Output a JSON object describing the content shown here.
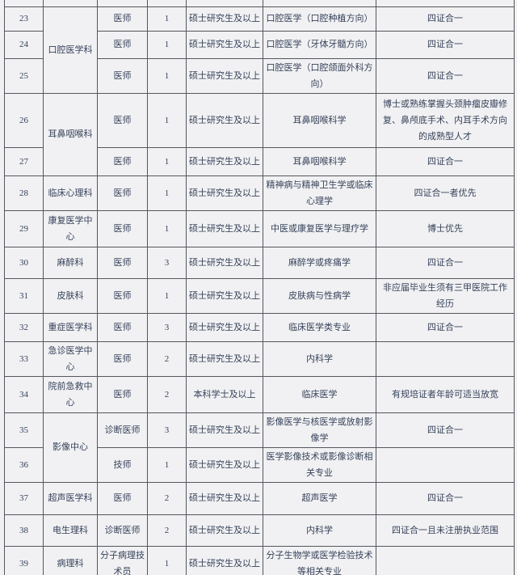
{
  "colors": {
    "background": "#f1f1f3",
    "text": "#36425a",
    "border": "#54575c"
  },
  "table": {
    "rows": [
      {
        "seq": "23",
        "department": "口腔医学科",
        "department_rowspan": 3,
        "position": "医师",
        "count": "1",
        "education": "硕士研究生及以上",
        "major": "口腔医学（口腔种植方向）",
        "remark": "四证合一"
      },
      {
        "seq": "24",
        "position": "医师",
        "count": "1",
        "education": "硕士研究生及以上",
        "major": "口腔医学（牙体牙髓方向）",
        "remark": "四证合一"
      },
      {
        "seq": "25",
        "position": "医师",
        "count": "1",
        "education": "硕士研究生及以上",
        "major": "口腔医学（口腔颌面外科方向）",
        "remark": "四证合一"
      },
      {
        "seq": "26",
        "department": "耳鼻咽喉科",
        "department_rowspan": 2,
        "position": "医师",
        "count": "1",
        "education": "硕士研究生及以上",
        "major": "耳鼻咽喉科学",
        "remark": "博士或熟练掌握头颈肿瘤皮瓣修复、鼻颅底手术、内耳手术方向的成熟型人才"
      },
      {
        "seq": "27",
        "position": "医师",
        "count": "1",
        "education": "硕士研究生及以上",
        "major": "耳鼻咽喉科学",
        "remark": "四证合一"
      },
      {
        "seq": "28",
        "department": "临床心理科",
        "position": "医师",
        "count": "1",
        "education": "硕士研究生及以上",
        "major": "精神病与精神卫生学或临床心理学",
        "remark": "四证合一者优先"
      },
      {
        "seq": "29",
        "department": "康复医学中心",
        "position": "医师",
        "count": "1",
        "education": "硕士研究生及以上",
        "major": "中医或康复医学与理疗学",
        "remark": "博士优先"
      },
      {
        "seq": "30",
        "department": "麻醉科",
        "position": "医师",
        "count": "3",
        "education": "硕士研究生及以上",
        "major": "麻醉学或疼痛学",
        "remark": "四证合一"
      },
      {
        "seq": "31",
        "department": "皮肤科",
        "position": "医师",
        "count": "1",
        "education": "硕士研究生及以上",
        "major": "皮肤病与性病学",
        "remark": "非应届毕业生须有三甲医院工作经历"
      },
      {
        "seq": "32",
        "department": "重症医学科",
        "position": "医师",
        "count": "3",
        "education": "硕士研究生及以上",
        "major": "临床医学类专业",
        "remark": "四证合一"
      },
      {
        "seq": "33",
        "department": "急诊医学中心",
        "position": "医师",
        "count": "2",
        "education": "硕士研究生及以上",
        "major": "内科学",
        "remark": ""
      },
      {
        "seq": "34",
        "department": "院前急救中心",
        "position": "医师",
        "count": "2",
        "education": "本科学士及以上",
        "major": "临床医学",
        "remark": "有规培证者年龄可适当放宽"
      },
      {
        "seq": "35",
        "department": "影像中心",
        "department_rowspan": 2,
        "position": "诊断医师",
        "count": "3",
        "education": "硕士研究生及以上",
        "major": "影像医学与核医学或放射影像学",
        "remark": "四证合一"
      },
      {
        "seq": "36",
        "position": "技师",
        "count": "1",
        "education": "硕士研究生及以上",
        "major": "医学影像技术或影像诊断相关专业",
        "remark": ""
      },
      {
        "seq": "37",
        "department": "超声医学科",
        "position": "医师",
        "count": "2",
        "education": "硕士研究生及以上",
        "major": "超声医学",
        "remark": "四证合一"
      },
      {
        "seq": "38",
        "department": "电生理科",
        "position": "诊断医师",
        "count": "2",
        "education": "硕士研究生及以上",
        "major": "内科学",
        "remark": "四证合一且未注册执业范围"
      },
      {
        "seq": "39",
        "department": "病理科",
        "position": "分子病理技术员",
        "count": "1",
        "education": "硕士研究生及以上",
        "major": "分子生物学或医学检验技术等相关专业",
        "remark": ""
      }
    ]
  }
}
